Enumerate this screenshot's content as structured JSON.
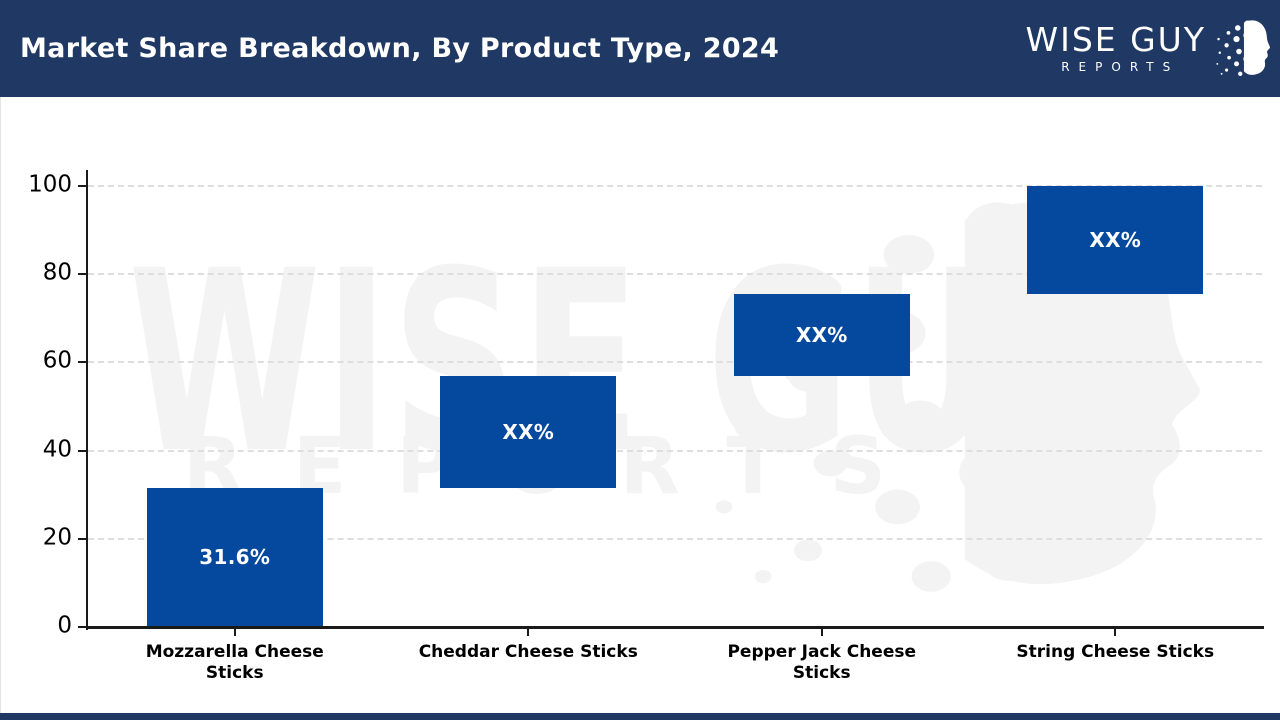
{
  "header": {
    "title": "Market Share Breakdown, By Product Type, 2024",
    "logo": {
      "line1": "WISE GUY",
      "line2": "REPORTS"
    }
  },
  "watermark": {
    "line1": "WISE GUY",
    "line2": "REPORTS"
  },
  "chart_data": {
    "type": "bar",
    "subtype": "floating-range-waterfall",
    "title": "Market Share Breakdown, By Product Type, 2024",
    "categories": [
      "Mozzarella Cheese Sticks",
      "Cheddar Cheese Sticks",
      "Pepper Jack Cheese Sticks",
      "String Cheese Sticks"
    ],
    "bars": [
      {
        "category": "Mozzarella Cheese Sticks",
        "start": 0,
        "end": 31.6,
        "label": "31.6%"
      },
      {
        "category": "Cheddar Cheese Sticks",
        "start": 31.6,
        "end": 57.0,
        "label": "XX%"
      },
      {
        "category": "Pepper Jack Cheese Sticks",
        "start": 57.0,
        "end": 75.4,
        "label": "XX%"
      },
      {
        "category": "String Cheese Sticks",
        "start": 75.4,
        "end": 100.0,
        "label": "XX%"
      }
    ],
    "xlabel": "",
    "ylabel": "",
    "ylim": [
      0,
      100
    ],
    "yticks": [
      0,
      20,
      40,
      60,
      80,
      100
    ],
    "grid": "horizontal-dashed",
    "legend": "none"
  },
  "colors": {
    "header_bg": "#1f3864",
    "footer_bg": "#1f3864",
    "bar": "#05499e",
    "bar_label": "#ffffff",
    "grid": "#dedede",
    "axis": "#1a1a1a",
    "watermark": "#f3f3f3"
  }
}
